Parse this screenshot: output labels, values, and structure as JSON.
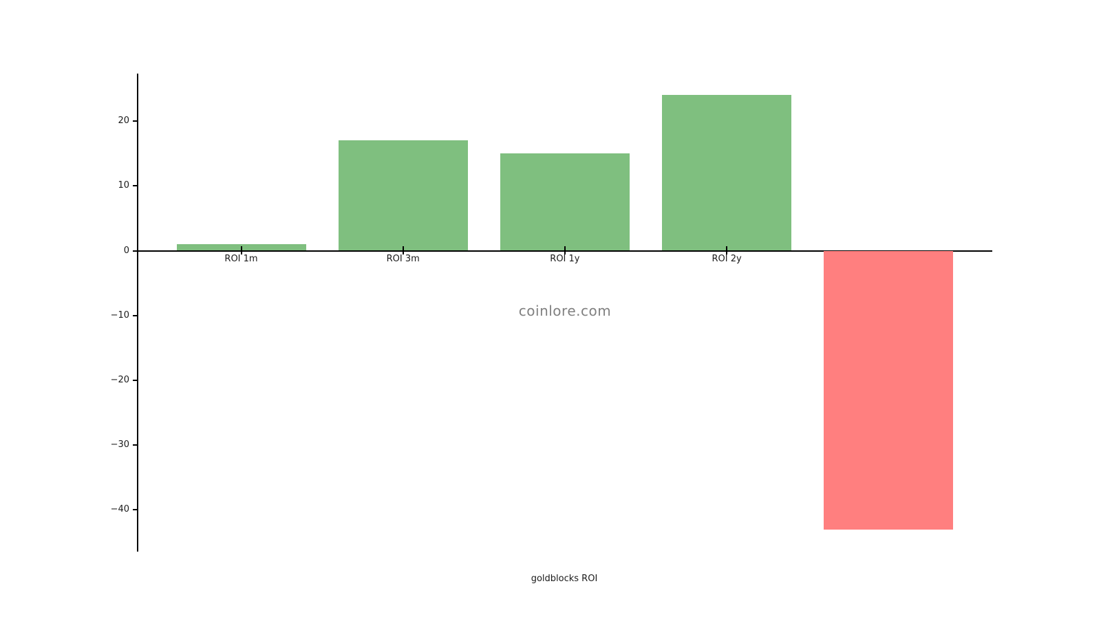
{
  "watermark": "coinlore.com",
  "chart_data": {
    "type": "bar",
    "title": "goldblocks ROI",
    "xlabel": "",
    "ylabel": "",
    "categories": [
      "ROI 1m",
      "ROI 3m",
      "ROI 1y",
      "ROI 2y",
      ""
    ],
    "values": [
      1,
      17,
      15,
      24,
      -43
    ],
    "bar_colors": [
      "#7fbf7f",
      "#7fbf7f",
      "#7fbf7f",
      "#7fbf7f",
      "#ff7f7f"
    ],
    "yticks": [
      20,
      10,
      0,
      -10,
      -20,
      -30,
      -40
    ],
    "ylim": [
      -46.4,
      27.4
    ],
    "grid": false,
    "legend": "none",
    "watermark": "coinlore.com",
    "colors": {
      "positive_bar": "#7fbf7f",
      "negative_bar": "#ff7f7f",
      "axis": "#000000",
      "tick_label": "#1a1a1a",
      "watermark_text": "#808080"
    }
  }
}
